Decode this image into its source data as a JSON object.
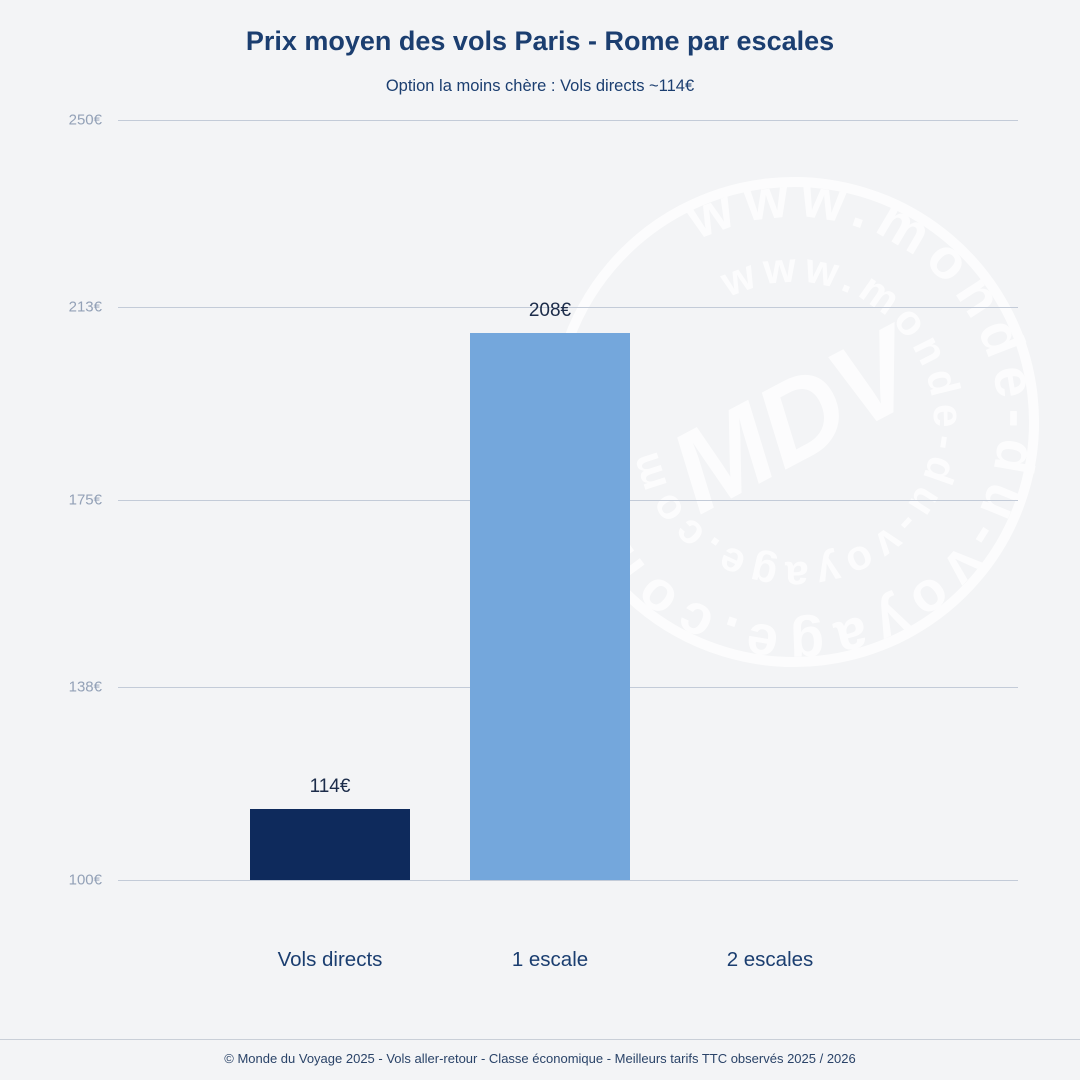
{
  "title": "Prix moyen des vols Paris - Rome par escales",
  "subtitle": "Option la moins chère : Vols directs ~114€",
  "footer": "© Monde du Voyage 2025 - Vols aller-retour - Classe économique - Meilleurs tarifs TTC observés 2025 / 2026",
  "watermark": {
    "ring_text": "www.monde-du-voyage.com",
    "center_text": "MDV"
  },
  "colors": {
    "background": "#f3f4f6",
    "title": "#1b3e70",
    "grid": "#c3cbd8",
    "tick_label": "#93a1b7",
    "bar_dark": "#0e2a5c",
    "bar_light": "#74a7dc"
  },
  "chart_data": {
    "type": "bar",
    "title": "Prix moyen des vols Paris - Rome par escales",
    "subtitle": "Option la moins chère : Vols directs ~114€",
    "categories": [
      "Vols directs",
      "1 escale",
      "2 escales"
    ],
    "values": [
      114,
      208,
      null
    ],
    "value_labels": [
      "114€",
      "208€",
      ""
    ],
    "xlabel": "",
    "ylabel": "",
    "ylim": [
      100,
      250
    ],
    "yticks": [
      100,
      138,
      175,
      213,
      250
    ],
    "ytick_labels": [
      "100€",
      "138€",
      "175€",
      "213€",
      "250€"
    ],
    "grid": true,
    "legend": false,
    "bar_colors": [
      "#0e2a5c",
      "#74a7dc",
      "#74a7dc"
    ]
  }
}
